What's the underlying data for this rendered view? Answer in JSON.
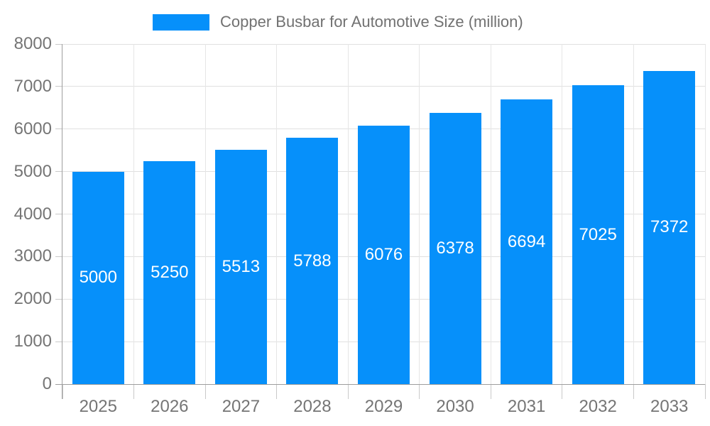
{
  "legend": {
    "swatch_color": "#0690fa"
  },
  "chart_data": {
    "type": "bar",
    "title": "Copper Busbar for Automotive Size (million)",
    "categories": [
      "2025",
      "2026",
      "2027",
      "2028",
      "2029",
      "2030",
      "2031",
      "2032",
      "2033"
    ],
    "values": [
      5000,
      5250,
      5513,
      5788,
      6076,
      6378,
      6694,
      7025,
      7372
    ],
    "xlabel": "",
    "ylabel": "",
    "ylim": [
      0,
      8000
    ],
    "yticks": [
      0,
      1000,
      2000,
      3000,
      4000,
      5000,
      6000,
      7000,
      8000
    ],
    "grid": true,
    "legend_position": "top",
    "value_label_position": "inside-center"
  },
  "colors": {
    "bar": "#0690fa",
    "text": "#757575",
    "title_text": "#717171",
    "value_label": "#ffffff",
    "axis": "#9e9e9e",
    "grid_h": "#e0e0e0",
    "grid_v": "#e6e6e6",
    "tick": "#c9c9c9",
    "background": "#ffffff"
  }
}
